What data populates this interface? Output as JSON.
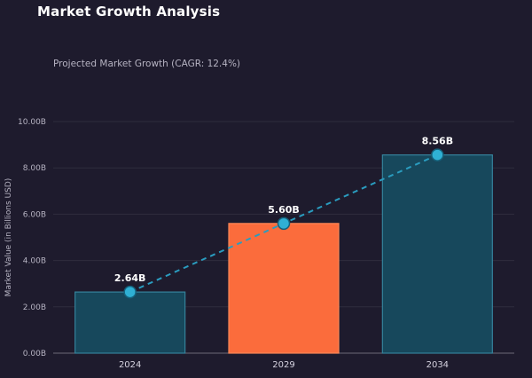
{
  "header": {
    "title": "Market Growth Analysis",
    "subtitle": "Projected Market Growth (CAGR: 12.4%)"
  },
  "chart_data": {
    "type": "bar",
    "title": "Market Growth Analysis",
    "subtitle": "Projected Market Growth (CAGR: 12.4%)",
    "categories": [
      "2024",
      "2029",
      "2034"
    ],
    "values": [
      2.64,
      5.6,
      8.56
    ],
    "value_labels": [
      "2.64B",
      "5.60B",
      "8.56B"
    ],
    "xlabel": "",
    "ylabel": "Market Value (in Billions USD)",
    "ylim": [
      0,
      10
    ],
    "yticks": [
      {
        "value": 0,
        "label": "0.00B"
      },
      {
        "value": 2,
        "label": "2.00B"
      },
      {
        "value": 4,
        "label": "4.00B"
      },
      {
        "value": 6,
        "label": "6.00B"
      },
      {
        "value": 8,
        "label": "8.00B"
      },
      {
        "value": 10,
        "label": "10.00B"
      }
    ],
    "grid": true,
    "legend": "none",
    "trendline": {
      "style": "dashed",
      "markers": true
    },
    "bar_colors": [
      "#17485c",
      "#fb6c3c",
      "#17485c"
    ],
    "bar_borders": [
      "#35829b",
      "#fd8757",
      "#35829b"
    ],
    "colors": {
      "background": "#1e1b2d",
      "line": "#2a9cbf",
      "marker": "#2fb0d4",
      "marker_edge": "#15607a",
      "value_label": "#ffffff",
      "tick_text": "#b6b3c2",
      "x_tick_text": "#d6d3e0",
      "grid": "rgba(255,255,255,0.08)",
      "axis": "rgba(255,255,255,0.35)"
    }
  }
}
